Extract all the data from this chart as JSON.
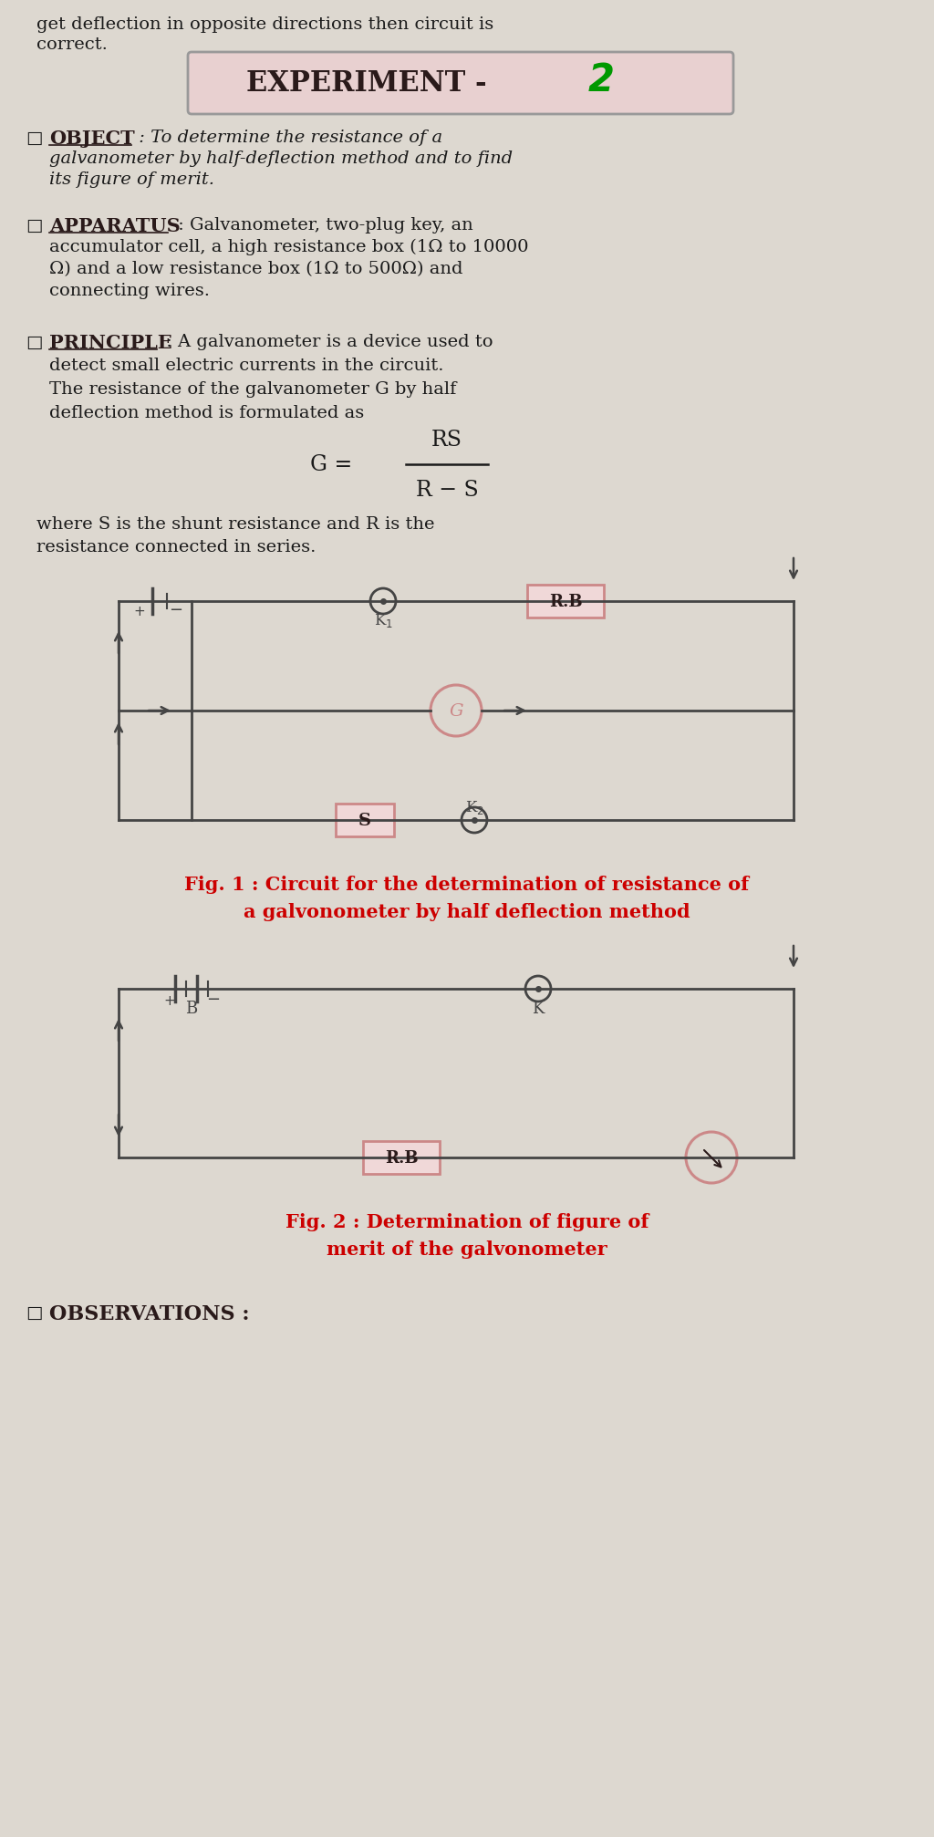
{
  "bg_color": "#ddd8d0",
  "text_color": "#1a1a1a",
  "red_color": "#cc0000",
  "green_color": "#009900",
  "dark_color": "#2a1a1a",
  "wire_color": "#444444",
  "pink_box_edge": "#cc8888",
  "pink_box_face": "#f0d8d8",
  "g_circle_color": "#cc8888",
  "experiment_box_face": "#e8d0d0",
  "experiment_box_edge": "#999999",
  "top_line1": "get deflection in opposite directions then circuit is",
  "top_line2": "correct.",
  "exp_label": "EXPERIMENT - ",
  "exp_num": "2",
  "obj_head": "OBJECT",
  "obj_body": " : To determine the resistance of a\n              galvanometer by half-deflection method and to find\n              its figure of merit.",
  "app_head": "APPARATUS",
  "app_body": " : Galvanometer, two-plug key, an\naccumulator cell, a high resistance box (1Ω to 10000\nΩ) and a low resistance box (1Ω to 500Ω) and\nconnecting wires.",
  "pri_head": "PRINCIPLE",
  "pri_body1": " : A galvanometer is a device used to",
  "pri_body2": "detect small electric currents in the circuit.",
  "pri_body3": "The resistance of the galvanometer G by half",
  "pri_body4": "deflection method is formulated as",
  "formula_num": "RS",
  "formula_den": "R − S",
  "where_line1": "where S is the shunt resistance and R is the",
  "where_line2": "resistance connected in series.",
  "fig1_cap1": "Fig. 1 : Circuit for the determination of resistance of",
  "fig1_cap2": "a galvonometer by half deflection method",
  "fig2_cap1": "Fig. 2 : Determination of figure of",
  "fig2_cap2": "merit of the galvonometer",
  "obs_head": "OBSERVATIONS :"
}
